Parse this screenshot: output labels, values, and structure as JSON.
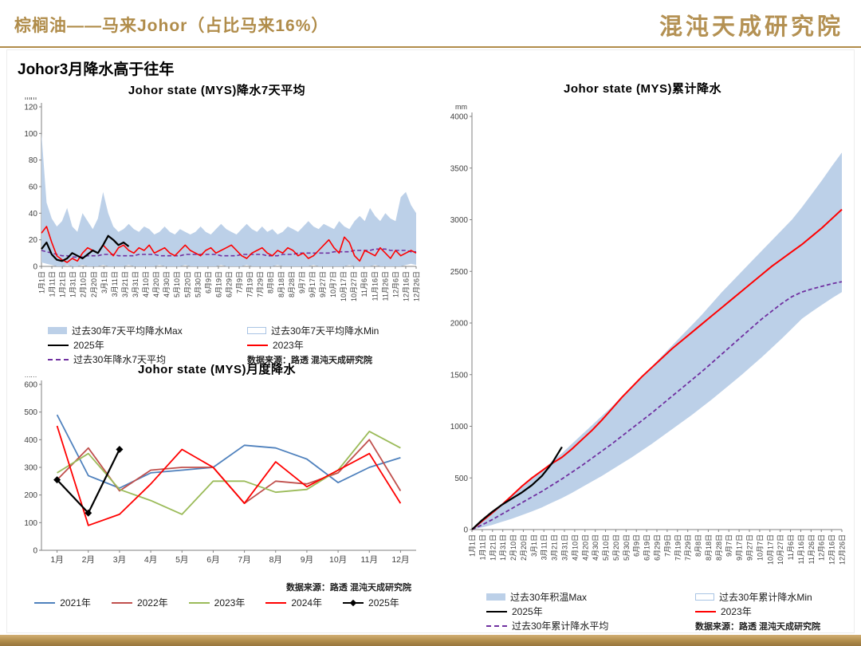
{
  "header": {
    "title": "棕榈油——马来Johor（占比马来16%）",
    "logo": "混沌天成研究院"
  },
  "heading": "Johor3月降水高于往年",
  "colors": {
    "gold": "#B08C4A",
    "band": "#BCD0E8",
    "band_min_border": "#A9C4E4",
    "purple": "#7030A0",
    "red": "#FF0000",
    "black": "#000000",
    "blue_2021": "#4F81BD",
    "brick_2022": "#C0504D",
    "olive_2023": "#9BBB59"
  },
  "chart_data": [
    {
      "id": "seven-day-average-rainfall",
      "type": "line",
      "title": "Johor state (MYS)降水7天平均",
      "unit": "mm",
      "ylim": [
        0,
        120
      ],
      "y_ticks": [
        0,
        20,
        40,
        60,
        80,
        100,
        120
      ],
      "x_count": 74,
      "x_labels": [
        "1月1日",
        "1月11日",
        "1月21日",
        "1月31日",
        "2月10日",
        "2月20日",
        "3月1日",
        "3月11日",
        "3月21日",
        "3月31日",
        "4月10日",
        "4月20日",
        "4月30日",
        "5月10日",
        "5月20日",
        "5月30日",
        "6月9日",
        "6月19日",
        "6月29日",
        "7月9日",
        "7月19日",
        "7月29日",
        "8月8日",
        "8月18日",
        "8月28日",
        "9月7日",
        "9月17日",
        "9月27日",
        "10月7日",
        "10月17日",
        "10月27日",
        "11月6日",
        "11月16日",
        "11月26日",
        "12月6日",
        "12月16日",
        "12月26日"
      ],
      "band": {
        "max_label": "过去30年7天平均降水Max",
        "min_label": "过去30年7天平均降水Min",
        "max": [
          100,
          48,
          36,
          30,
          34,
          44,
          30,
          26,
          40,
          34,
          28,
          36,
          56,
          40,
          30,
          26,
          28,
          32,
          28,
          26,
          30,
          28,
          24,
          26,
          30,
          26,
          24,
          28,
          26,
          24,
          26,
          30,
          26,
          24,
          28,
          32,
          28,
          26,
          24,
          28,
          32,
          28,
          26,
          30,
          26,
          28,
          24,
          26,
          30,
          28,
          26,
          30,
          34,
          30,
          28,
          32,
          30,
          28,
          34,
          30,
          28,
          34,
          38,
          34,
          44,
          38,
          34,
          40,
          36,
          34,
          52,
          56,
          46,
          40
        ],
        "min": [
          3,
          2,
          1,
          0,
          0,
          1,
          0,
          0,
          1,
          0,
          0,
          0,
          1,
          0,
          0,
          0,
          0,
          1,
          0,
          0,
          0,
          0,
          0,
          1,
          0,
          0,
          0,
          0,
          1,
          0,
          0,
          0,
          0,
          0,
          0,
          1,
          0,
          0,
          0,
          0,
          1,
          0,
          0,
          0,
          0,
          0,
          1,
          0,
          0,
          0,
          0,
          0,
          0,
          1,
          0,
          0,
          0,
          0,
          0,
          0,
          1,
          0,
          0,
          0,
          0,
          1,
          0,
          0,
          0,
          0,
          0,
          1,
          2,
          1
        ]
      },
      "series": [
        {
          "name": "过去30年降水7天平均",
          "color": "#7030A0",
          "dash": true,
          "width": 1.6,
          "values": [
            12,
            11,
            10,
            9,
            8,
            8,
            7,
            7,
            7,
            8,
            8,
            8,
            9,
            9,
            9,
            8,
            8,
            8,
            8,
            9,
            9,
            9,
            9,
            8,
            8,
            8,
            8,
            8,
            9,
            9,
            9,
            9,
            9,
            9,
            9,
            8,
            8,
            8,
            8,
            9,
            9,
            9,
            9,
            9,
            8,
            8,
            8,
            9,
            9,
            9,
            10,
            10,
            10,
            10,
            10,
            10,
            10,
            11,
            11,
            11,
            11,
            12,
            12,
            12,
            12,
            13,
            13,
            13,
            12,
            12,
            12,
            12,
            11,
            11
          ]
        },
        {
          "name": "2023年",
          "color": "#FF0000",
          "width": 1.6,
          "values": [
            25,
            30,
            18,
            8,
            5,
            3,
            6,
            4,
            10,
            14,
            12,
            10,
            16,
            12,
            8,
            14,
            16,
            12,
            10,
            14,
            12,
            16,
            10,
            12,
            14,
            10,
            8,
            12,
            16,
            12,
            10,
            8,
            12,
            14,
            10,
            12,
            14,
            16,
            12,
            8,
            6,
            10,
            12,
            14,
            10,
            8,
            12,
            10,
            14,
            12,
            8,
            10,
            6,
            8,
            12,
            16,
            20,
            14,
            10,
            22,
            18,
            8,
            4,
            12,
            10,
            8,
            14,
            10,
            6,
            12,
            8,
            10,
            12,
            10
          ]
        },
        {
          "name": "2025年",
          "color": "#000000",
          "width": 2.2,
          "values": [
            13,
            18,
            9,
            5,
            4,
            6,
            10,
            8,
            6,
            9,
            12,
            10,
            16,
            23,
            20,
            16,
            18,
            15
          ]
        }
      ],
      "legend": [
        {
          "label": "过去30年7天平均降水Max",
          "type": "band"
        },
        {
          "label": "过去30年7天平均降水Min",
          "type": "band-outline"
        },
        {
          "label": "2025年",
          "type": "line",
          "color": "#000000"
        },
        {
          "label": "2023年",
          "type": "line",
          "color": "#FF0000"
        },
        {
          "label": "过去30年降水7天平均",
          "type": "dash",
          "color": "#7030A0"
        }
      ],
      "source": "数据来源：路透 混沌天成研究院"
    },
    {
      "id": "monthly-rainfall",
      "type": "line",
      "title": "Johor state (MYS)月度降水",
      "unit": "mm",
      "ylim": [
        0,
        600
      ],
      "y_ticks": [
        0,
        100,
        200,
        300,
        400,
        500,
        600
      ],
      "categories": [
        "1月",
        "2月",
        "3月",
        "4月",
        "5月",
        "6月",
        "7月",
        "8月",
        "9月",
        "10月",
        "11月",
        "12月"
      ],
      "series": [
        {
          "name": "2021年",
          "color": "#4F81BD",
          "width": 1.8,
          "values": [
            490,
            270,
            225,
            280,
            290,
            300,
            380,
            370,
            330,
            245,
            300,
            335
          ]
        },
        {
          "name": "2022年",
          "color": "#C0504D",
          "width": 1.8,
          "values": [
            255,
            370,
            215,
            290,
            300,
            300,
            170,
            250,
            240,
            280,
            400,
            215
          ]
        },
        {
          "name": "2023年",
          "color": "#9BBB59",
          "width": 1.8,
          "values": [
            280,
            350,
            220,
            180,
            130,
            250,
            250,
            210,
            220,
            290,
            430,
            370
          ]
        },
        {
          "name": "2024年",
          "color": "#FF0000",
          "width": 1.8,
          "values": [
            450,
            90,
            130,
            240,
            365,
            300,
            170,
            320,
            230,
            290,
            350,
            170
          ]
        },
        {
          "name": "2025年",
          "color": "#000000",
          "width": 2.2,
          "marker": "diamond",
          "values": [
            255,
            135,
            365
          ]
        }
      ],
      "legend": [
        {
          "label": "2021年",
          "type": "line",
          "color": "#4F81BD"
        },
        {
          "label": "2022年",
          "type": "line",
          "color": "#C0504D"
        },
        {
          "label": "2023年",
          "type": "line",
          "color": "#9BBB59"
        },
        {
          "label": "2024年",
          "type": "line",
          "color": "#FF0000"
        },
        {
          "label": "2025年",
          "type": "line-diamond",
          "color": "#000000"
        }
      ],
      "source": "数据来源：路透 混沌天成研究院"
    },
    {
      "id": "cumulative-rainfall",
      "type": "line",
      "title": "Johor state (MYS)累计降水",
      "unit": "mm",
      "ylim": [
        0,
        4000
      ],
      "y_ticks": [
        0,
        500,
        1000,
        1500,
        2000,
        2500,
        3000,
        3500,
        4000
      ],
      "x_count": 38,
      "x_labels": [
        "1月1日",
        "1月11日",
        "1月21日",
        "1月31日",
        "2月10日",
        "2月20日",
        "3月1日",
        "3月11日",
        "3月21日",
        "3月31日",
        "4月10日",
        "4月20日",
        "4月30日",
        "5月10日",
        "5月20日",
        "5月30日",
        "6月9日",
        "6月19日",
        "6月29日",
        "7月9日",
        "7月19日",
        "7月29日",
        "8月8日",
        "8月18日",
        "8月28日",
        "9月7日",
        "9月17日",
        "9月27日",
        "10月7日",
        "10月17日",
        "10月27日",
        "11月6日",
        "11月16日",
        "11月26日",
        "12月6日",
        "12月16日",
        "12月26日"
      ],
      "band": {
        "max_label": "过去30年积温Max",
        "min_label": "过去30年累计降水Min",
        "max": [
          0,
          90,
          170,
          250,
          330,
          410,
          490,
          570,
          660,
          740,
          830,
          920,
          1010,
          1100,
          1190,
          1290,
          1390,
          1490,
          1580,
          1680,
          1780,
          1880,
          1980,
          2080,
          2190,
          2300,
          2400,
          2500,
          2600,
          2700,
          2800,
          2900,
          3000,
          3120,
          3250,
          3380,
          3520,
          3650
        ],
        "min": [
          0,
          20,
          45,
          75,
          105,
          140,
          175,
          215,
          260,
          305,
          355,
          410,
          465,
          520,
          580,
          640,
          700,
          765,
          830,
          900,
          970,
          1040,
          1110,
          1185,
          1260,
          1340,
          1420,
          1500,
          1585,
          1670,
          1760,
          1850,
          1945,
          2040,
          2110,
          2175,
          2240,
          2300
        ]
      },
      "series": [
        {
          "name": "过去30年累计降水平均",
          "color": "#7030A0",
          "dash": true,
          "width": 1.8,
          "values": [
            0,
            45,
            95,
            150,
            205,
            260,
            315,
            370,
            430,
            490,
            555,
            620,
            690,
            760,
            830,
            905,
            980,
            1055,
            1130,
            1210,
            1290,
            1370,
            1450,
            1530,
            1615,
            1700,
            1785,
            1870,
            1955,
            2040,
            2115,
            2190,
            2255,
            2300,
            2330,
            2355,
            2380,
            2400
          ]
        },
        {
          "name": "2023年",
          "color": "#FF0000",
          "width": 2,
          "values": [
            0,
            80,
            160,
            240,
            330,
            420,
            500,
            570,
            640,
            700,
            780,
            870,
            960,
            1060,
            1170,
            1280,
            1380,
            1480,
            1570,
            1660,
            1750,
            1830,
            1910,
            1990,
            2070,
            2150,
            2230,
            2310,
            2390,
            2470,
            2550,
            2620,
            2690,
            2760,
            2840,
            2920,
            3010,
            3100
          ]
        },
        {
          "name": "2025年",
          "color": "#000000",
          "width": 2.2,
          "values": [
            0,
            90,
            170,
            240,
            300,
            360,
            430,
            520,
            640,
            800
          ]
        }
      ],
      "legend": [
        {
          "label": "过去30年积温Max",
          "type": "band"
        },
        {
          "label": "过去30年累计降水Min",
          "type": "band-outline"
        },
        {
          "label": "2025年",
          "type": "line",
          "color": "#000000"
        },
        {
          "label": "2023年",
          "type": "line",
          "color": "#FF0000"
        },
        {
          "label": "过去30年累计降水平均",
          "type": "dash",
          "color": "#7030A0"
        }
      ],
      "source": "数据来源：路透 混沌天成研究院"
    }
  ]
}
